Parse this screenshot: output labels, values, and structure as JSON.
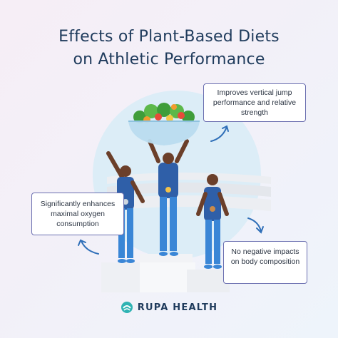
{
  "title": {
    "line1": "Effects of Plant-Based Diets",
    "line2": "on Athletic Performance"
  },
  "callouts": {
    "jump": "Improves vertical jump performance and relative strength",
    "oxygen": "Significantly enhances maximal oxygen consumption",
    "body": "No negative impacts on body composition"
  },
  "brand": {
    "name": "RUPA HEALTH"
  },
  "colors": {
    "title": "#1f3b5c",
    "callout_border": "#6b6fb0",
    "athlete_uniform": "#3a86d6",
    "arrow": "#2f6fb8",
    "brand_teal": "#2fb3b3"
  },
  "icons": [
    "salad-bowl-icon",
    "gold-medal-icon",
    "silver-medal-icon",
    "bronze-medal-icon",
    "curved-arrow-icon",
    "rupa-logo-icon"
  ]
}
